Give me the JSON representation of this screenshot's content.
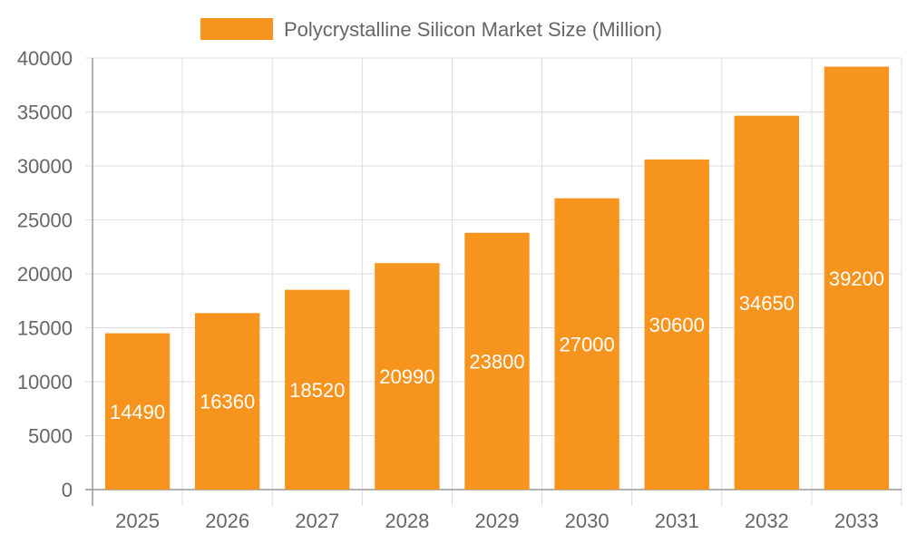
{
  "chart_data": {
    "type": "bar",
    "categories": [
      "2025",
      "2026",
      "2027",
      "2028",
      "2029",
      "2030",
      "2031",
      "2032",
      "2033"
    ],
    "series": [
      {
        "name": "Polycrystalline Silicon Market Size (Million)",
        "values": [
          14490,
          16360,
          18520,
          20990,
          23800,
          27000,
          30600,
          34650,
          39200
        ],
        "color": "#f7941d"
      }
    ],
    "title": "",
    "xlabel": "",
    "ylabel": "",
    "ylim": [
      0,
      40000
    ],
    "yticks": [
      0,
      5000,
      10000,
      15000,
      20000,
      25000,
      30000,
      35000,
      40000
    ],
    "grid": true,
    "legend": "top-center",
    "data_labels": true
  }
}
